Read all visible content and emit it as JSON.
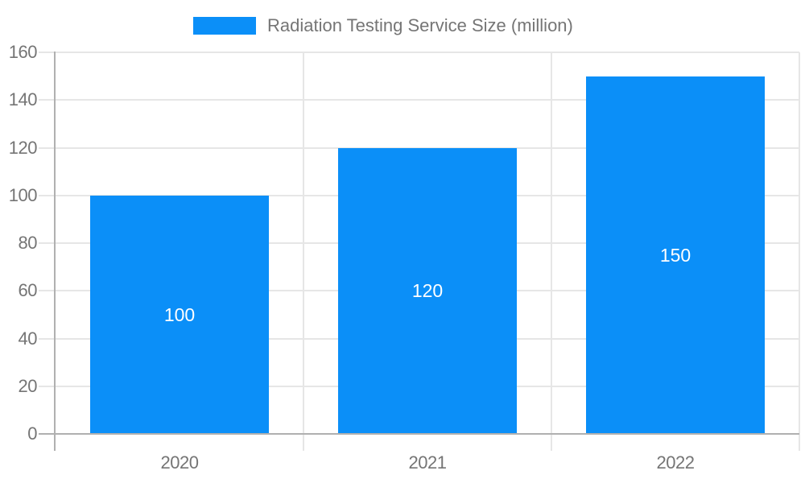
{
  "chart_data": {
    "type": "bar",
    "series_name": "Radiation Testing Service Size (million)",
    "categories": [
      "2020",
      "2021",
      "2022"
    ],
    "values": [
      100,
      120,
      150
    ],
    "data_labels": [
      "100",
      "120",
      "150"
    ],
    "xlabel": "",
    "ylabel": "",
    "ylim": [
      0,
      160
    ],
    "ytick_step": 20,
    "yticks": [
      0,
      20,
      40,
      60,
      80,
      100,
      120,
      140,
      160
    ],
    "grid": true,
    "legend_position": "top",
    "colors": {
      "bar": "#0b8ff8",
      "data_label": "#ffffff",
      "axis_text": "#757575",
      "gridline": "#e6e6e6",
      "axis_line": "#b0b0b0"
    }
  }
}
